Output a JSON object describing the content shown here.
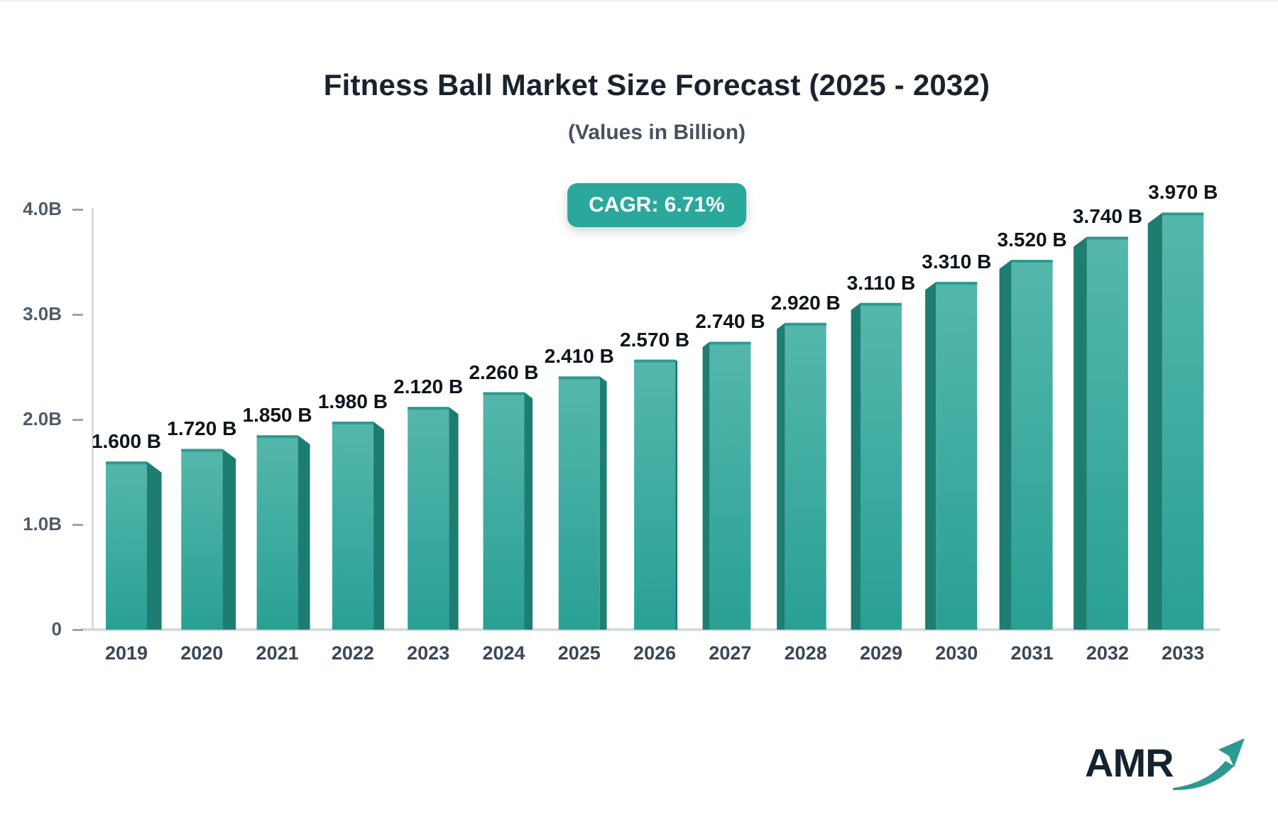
{
  "page": {
    "title": "Fitness Ball Market Size Forecast (2025 - 2032)",
    "subtitle": "(Values in Billion)",
    "cagr_label": "CAGR: 6.71%",
    "logo_text": "AMR"
  },
  "colors": {
    "accent": "#2aa89b",
    "bar_front_top": "#55b7ac",
    "bar_front_bottom": "#29a094",
    "bar_side": "#1e7d71",
    "bar_top_cap": "#2d9b8f",
    "axis_line": "#d7dade",
    "tick_dash": "#9ca3ad",
    "title_text": "#1a222e",
    "subtitle_text": "#46515f",
    "value_label_text": "#0d141c",
    "x_label_text": "#3c4657",
    "y_label_text": "#505b69",
    "logo_text": "#152230",
    "logo_arrow": "#2c9a8f"
  },
  "chart_data": {
    "type": "bar",
    "title": "Fitness Ball Market Size Forecast (2025 - 2032)",
    "subtitle": "(Values in Billion)",
    "annotation": "CAGR: 6.71%",
    "categories": [
      "2019",
      "2020",
      "2021",
      "2022",
      "2023",
      "2024",
      "2025",
      "2026",
      "2027",
      "2028",
      "2029",
      "2030",
      "2031",
      "2032",
      "2033"
    ],
    "values": [
      1.6,
      1.72,
      1.85,
      1.98,
      2.12,
      2.26,
      2.41,
      2.57,
      2.74,
      2.92,
      3.11,
      3.31,
      3.52,
      3.74,
      3.97
    ],
    "value_labels": [
      "1.600 B",
      "1.720 B",
      "1.850 B",
      "1.980 B",
      "2.120 B",
      "2.260 B",
      "2.410 B",
      "2.570 B",
      "2.740 B",
      "2.920 B",
      "3.110 B",
      "3.310 B",
      "3.520 B",
      "3.740 B",
      "3.970 B"
    ],
    "unit": "Billion",
    "xlabel": "",
    "ylabel": "",
    "ylim": [
      0,
      4.0
    ],
    "grid": false,
    "legend": false,
    "yticks": [
      {
        "value": 4.0,
        "label": "4.0B"
      },
      {
        "value": 3.0,
        "label": "3.0B"
      },
      {
        "value": 2.0,
        "label": "2.0B"
      },
      {
        "value": 1.0,
        "label": "1.0B"
      },
      {
        "value": 0,
        "label": "0"
      }
    ]
  }
}
